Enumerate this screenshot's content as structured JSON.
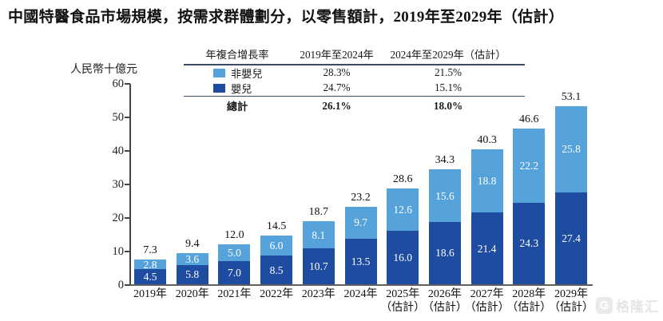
{
  "title": "中國特醫食品市場規模，按需求群體劃分，以零售額計，2019年至2029年（估計）",
  "colors": {
    "non_infant": "#55A3DA",
    "infant": "#1E4CA1",
    "axis": "#454545",
    "table_rule": "#3c4c66",
    "watermark": "#e5e5e3"
  },
  "cagr_table": {
    "header": [
      "年複合增長率",
      "2019年至2024年",
      "2024年至2029年（估計）"
    ],
    "rows": [
      {
        "label": "非嬰兒",
        "cagr_2019_2024": "28.3%",
        "cagr_2024_2029": "21.5%"
      },
      {
        "label": "嬰兒",
        "cagr_2019_2024": "24.7%",
        "cagr_2024_2029": "15.1%"
      }
    ],
    "total_row": {
      "label": "總計",
      "cagr_2019_2024": "26.1%",
      "cagr_2024_2029": "18.0%"
    }
  },
  "watermark": {
    "icon": "G",
    "text": "格隆汇"
  },
  "chart_data": {
    "type": "bar",
    "stacked": true,
    "title": "中國特醫食品市場規模，按需求群體劃分，以零售額計，2019年至2029年（估計）",
    "ylabel": "人民幣十億元",
    "ylim": [
      0,
      60
    ],
    "y_ticks": [
      0,
      10,
      20,
      30,
      40,
      50,
      60
    ],
    "grid": false,
    "legend_position": "top-table",
    "categories": [
      "2019年",
      "2020年",
      "2021年",
      "2022年",
      "2023年",
      "2024年",
      "2025年\n（估計）",
      "2026年\n（估計）",
      "2027年\n（估計）",
      "2028年\n（估計）",
      "2029年\n（估計）"
    ],
    "series": [
      {
        "name": "嬰兒",
        "color_key": "infant",
        "values": [
          4.5,
          5.8,
          7.0,
          8.5,
          10.7,
          13.5,
          16.0,
          18.6,
          21.4,
          24.3,
          27.4
        ]
      },
      {
        "name": "非嬰兒",
        "color_key": "non_infant",
        "values": [
          2.8,
          3.6,
          5.0,
          6.0,
          8.1,
          9.7,
          12.6,
          15.6,
          18.8,
          22.2,
          25.8
        ]
      }
    ],
    "totals": [
      7.3,
      9.4,
      12.0,
      14.5,
      18.7,
      23.2,
      28.6,
      34.3,
      40.3,
      46.6,
      53.1
    ]
  }
}
